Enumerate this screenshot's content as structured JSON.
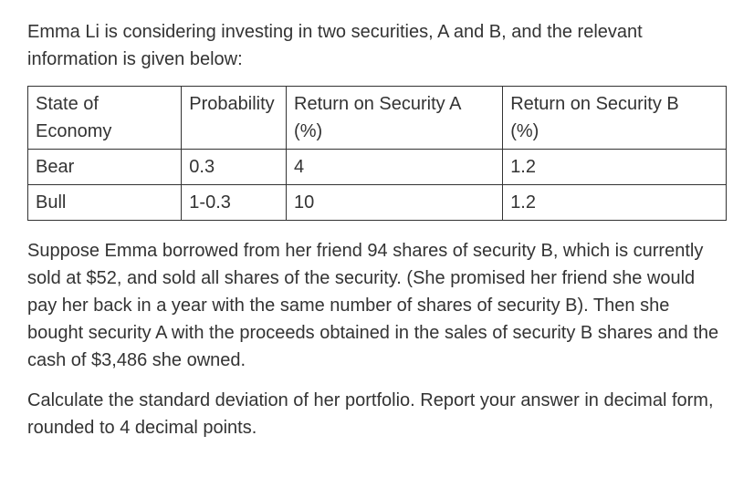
{
  "intro": "Emma Li is considering investing in two securities, A and B, and the relevant information is given below:",
  "table": {
    "columns": [
      {
        "line1": "State of",
        "line2": "Economy"
      },
      {
        "line1": "Probability",
        "line2": ""
      },
      {
        "line1": "Return on Security A",
        "line2": "(%)"
      },
      {
        "line1": "Return on Security B",
        "line2": "(%)"
      }
    ],
    "rows": [
      [
        "Bear",
        "0.3",
        "4",
        "1.2"
      ],
      [
        "Bull",
        "1-0.3",
        "10",
        "1.2"
      ]
    ],
    "border_color": "#333333",
    "cell_padding": "4px 8px",
    "font_size": 20
  },
  "para2": "Suppose Emma borrowed from her friend 94 shares of security B, which is currently sold at $52, and sold all shares of the security. (She promised her friend she would pay her back in a year with the same number of shares of security B). Then she bought security A with the proceeds obtained in the sales of security B shares and the cash of $3,486 she owned.",
  "para3": "Calculate the standard deviation of her portfolio. Report your answer in decimal form, rounded to 4 decimal points.",
  "styles": {
    "body_font_size": 20,
    "body_color": "#333333",
    "background_color": "#ffffff",
    "line_height": 1.5
  }
}
